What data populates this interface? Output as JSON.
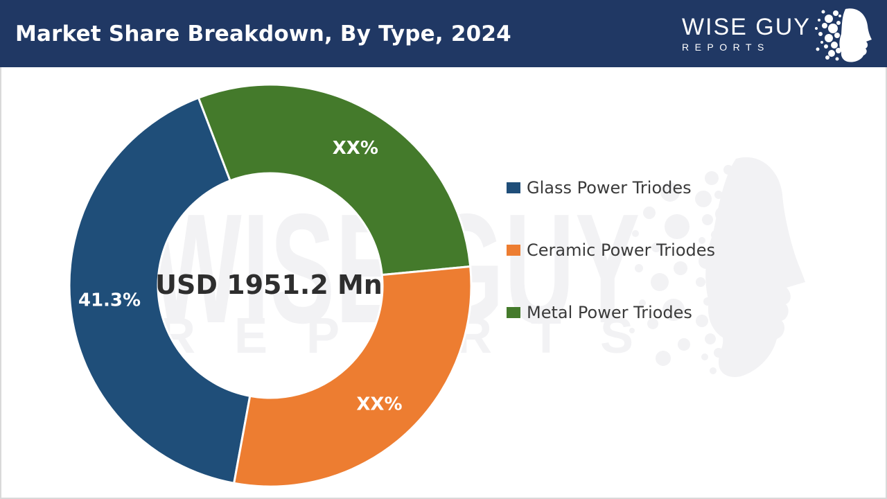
{
  "header": {
    "title": "Market Share Breakdown, By Type, 2024",
    "logo": {
      "line1": "WISE GUY",
      "line2": "REPORTS"
    }
  },
  "watermark": {
    "line1": "WISE GUY",
    "line2": "REPORTS"
  },
  "chart_data": {
    "type": "pie",
    "subtype": "donut",
    "title": "Market Share Breakdown, By Type, 2024",
    "center_label": "USD 1951.2 Mn",
    "legend_position": "right",
    "start_angle_clockwise_from_top_deg": 190.4,
    "draw_order": [
      "Glass Power Triodes",
      "Metal Power Triodes",
      "Ceramic Power Triodes"
    ],
    "segments": [
      {
        "label": "Glass Power Triodes",
        "color": "#1F4E79",
        "share_pct": 41.3,
        "displayed_label": "41.3%"
      },
      {
        "label": "Ceramic Power Triodes",
        "color": "#ED7D31",
        "share_pct": 29.4,
        "displayed_label": "XX%"
      },
      {
        "label": "Metal Power Triodes",
        "color": "#447A2B",
        "share_pct": 29.3,
        "displayed_label": "XX%"
      }
    ]
  },
  "colors": {
    "header_bg": "#203864",
    "slice_label_text": "#FFFFFF",
    "center_text": "#2E2E2E",
    "legend_text": "#3A3A3A",
    "watermark": "#F2F2F4",
    "border": "#D9D9D9"
  }
}
